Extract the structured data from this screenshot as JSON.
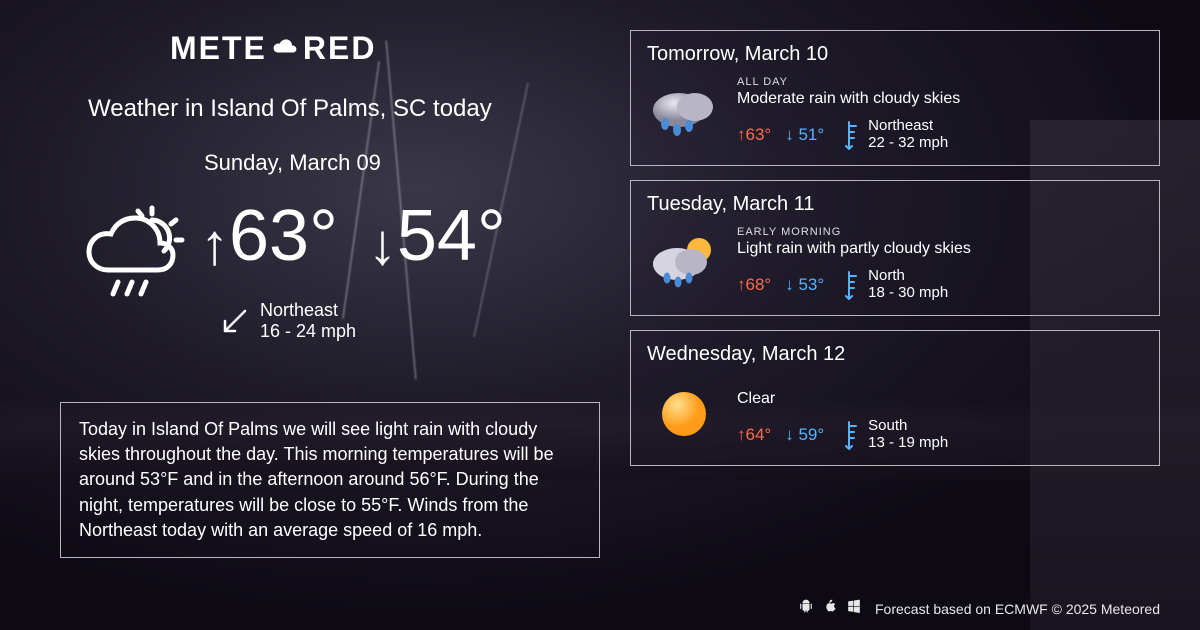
{
  "brand": {
    "pre": "METE",
    "post": "RED"
  },
  "title": "Weather in Island Of Palms, SC today",
  "date": "Sunday, March 09",
  "today": {
    "high": "63°",
    "low": "54°",
    "wind_dir": "Northeast",
    "wind_speed": "16 - 24 mph",
    "icon": "rain-cloud-sun"
  },
  "description": "Today in Island Of Palms we will see light rain with cloudy skies throughout the day. This morning temperatures will be around 53°F and in the afternoon around 56°F. During the night, temperatures will be close to 55°F. Winds from the Northeast today with an average speed of 16 mph.",
  "days": [
    {
      "title": "Tomorrow, March 10",
      "period": "ALL DAY",
      "cond": "Moderate rain with cloudy skies",
      "high": "63°",
      "low": "51°",
      "wind_dir": "Northeast",
      "wind_speed": "22 - 32 mph",
      "icon": "rain-cloud"
    },
    {
      "title": "Tuesday, March 11",
      "period": "EARLY MORNING",
      "cond": "Light rain with partly cloudy skies",
      "high": "68°",
      "low": "53°",
      "wind_dir": "North",
      "wind_speed": "18 - 30 mph",
      "icon": "rain-cloud-sun"
    },
    {
      "title": "Wednesday, March 12",
      "period": "",
      "cond": "Clear",
      "high": "64°",
      "low": "59°",
      "wind_dir": "South",
      "wind_speed": "13 - 19 mph",
      "icon": "sun"
    }
  ],
  "footer": "Forecast based on ECMWF © 2025 Meteored",
  "colors": {
    "hi": "#ff6b4a",
    "lo": "#56b3ff",
    "border": "#b9b3c2"
  }
}
